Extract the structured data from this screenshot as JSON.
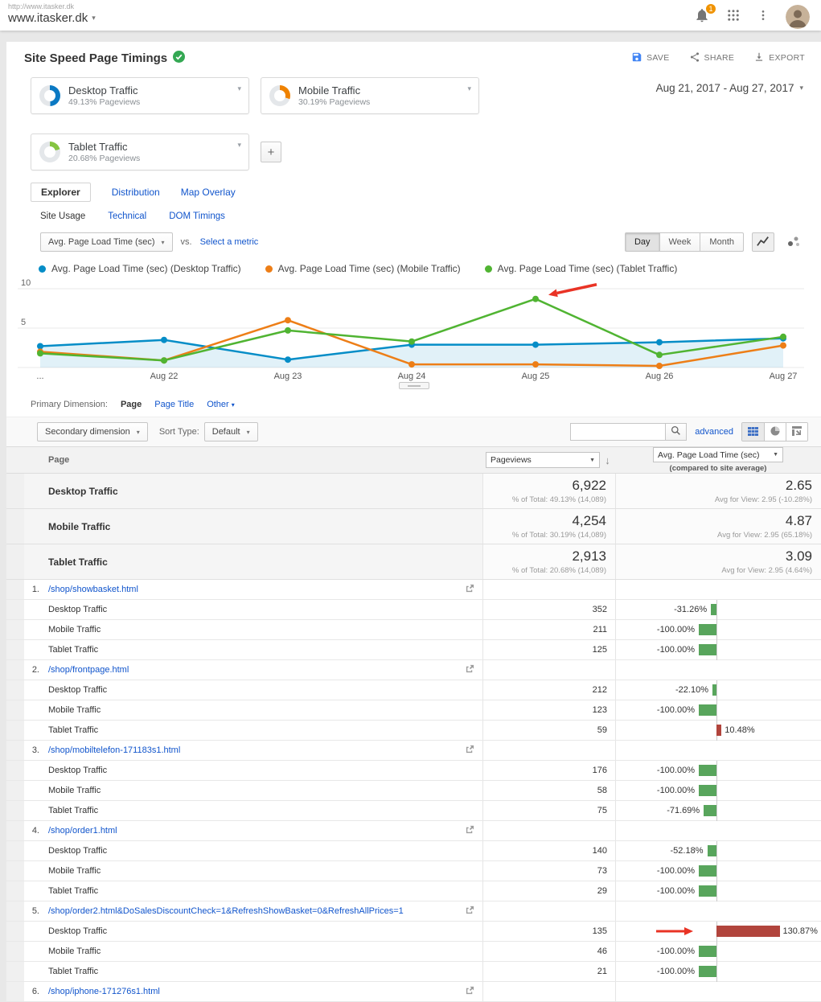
{
  "topbar": {
    "url": "http://www.itasker.dk",
    "account_name": "www.itasker.dk",
    "notification_count": "1"
  },
  "report": {
    "title": "Site Speed Page Timings",
    "actions": {
      "save": "SAVE",
      "share": "SHARE",
      "export": "EXPORT"
    },
    "date_range": "Aug 21, 2017 - Aug 27, 2017"
  },
  "segments": [
    {
      "name": "Desktop Traffic",
      "detail": "49.13% Pageviews",
      "pct": 49.13,
      "color": "#0b79c3"
    },
    {
      "name": "Mobile Traffic",
      "detail": "30.19% Pageviews",
      "pct": 30.19,
      "color": "#ef8200"
    },
    {
      "name": "Tablet Traffic",
      "detail": "20.68% Pageviews",
      "pct": 20.68,
      "color": "#85c441"
    }
  ],
  "tabs": [
    {
      "label": "Explorer",
      "active": true
    },
    {
      "label": "Distribution",
      "active": false
    },
    {
      "label": "Map Overlay",
      "active": false
    }
  ],
  "subtabs": [
    {
      "label": "Site Usage",
      "active": true
    },
    {
      "label": "Technical",
      "active": false
    },
    {
      "label": "DOM Timings",
      "active": false
    }
  ],
  "metric_bar": {
    "metric_dropdown": "Avg. Page Load Time (sec)",
    "vs_label": "vs.",
    "select_metric_label": "Select a metric",
    "granularity": [
      "Day",
      "Week",
      "Month"
    ],
    "active_granularity": "Day"
  },
  "legend": [
    {
      "label": "Avg. Page Load Time (sec) (Desktop Traffic)",
      "color": "#058dc7"
    },
    {
      "label": "Avg. Page Load Time (sec) (Mobile Traffic)",
      "color": "#ed7e17"
    },
    {
      "label": "Avg. Page Load Time (sec) (Tablet Traffic)",
      "color": "#50b432"
    }
  ],
  "chart_data": {
    "type": "line",
    "x": [
      "...",
      "Aug 22",
      "Aug 23",
      "Aug 24",
      "Aug 25",
      "Aug 26",
      "Aug 27"
    ],
    "series": [
      {
        "name": "Avg. Page Load Time (sec) (Desktop Traffic)",
        "color": "#058dc7",
        "area": true,
        "values": [
          2.7,
          3.5,
          1.0,
          2.9,
          2.9,
          3.2,
          3.7
        ]
      },
      {
        "name": "Avg. Page Load Time (sec) (Mobile Traffic)",
        "color": "#ed7e17",
        "area": false,
        "values": [
          2.0,
          0.9,
          6.0,
          0.4,
          0.4,
          0.2,
          2.8
        ]
      },
      {
        "name": "Avg. Page Load Time (sec) (Tablet Traffic)",
        "color": "#50b432",
        "area": false,
        "values": [
          1.8,
          0.9,
          4.7,
          3.3,
          8.7,
          1.6,
          3.9
        ]
      }
    ],
    "ylim": [
      0,
      10
    ],
    "yticks": [
      5,
      10
    ],
    "grid": true,
    "legend_position": "top"
  },
  "dimension_bar": {
    "label": "Primary Dimension:",
    "options": [
      {
        "label": "Page",
        "active": true,
        "dropdown": false
      },
      {
        "label": "Page Title",
        "active": false,
        "dropdown": false
      },
      {
        "label": "Other",
        "active": false,
        "dropdown": true
      }
    ]
  },
  "table_controls": {
    "secondary_dimension": "Secondary dimension",
    "sort_type_label": "Sort Type:",
    "sort_type_value": "Default",
    "search_value": "",
    "advanced_label": "advanced"
  },
  "table": {
    "columns": {
      "page": "Page",
      "pageviews": "Pageviews",
      "metric": "Avg. Page Load Time (sec)",
      "metric_note": "(compared to site average)"
    },
    "bar_colors": {
      "negative": "#58a55c",
      "positive": "#b1443c"
    },
    "summary_rows": [
      {
        "name": "Desktop Traffic",
        "pageviews": "6,922",
        "pageviews_note": "% of Total: 49.13% (14,089)",
        "metric": "2.65",
        "metric_note": "Avg for View: 2.95 (-10.28%)"
      },
      {
        "name": "Mobile Traffic",
        "pageviews": "4,254",
        "pageviews_note": "% of Total: 30.19% (14,089)",
        "metric": "4.87",
        "metric_note": "Avg for View: 2.95 (65.18%)"
      },
      {
        "name": "Tablet Traffic",
        "pageviews": "2,913",
        "pageviews_note": "% of Total: 20.68% (14,089)",
        "metric": "3.09",
        "metric_note": "Avg for View: 2.95 (4.64%)"
      }
    ],
    "rows": [
      {
        "index": "1.",
        "url": "/shop/showbasket.html",
        "segments": [
          {
            "name": "Desktop Traffic",
            "pageviews": "352",
            "delta": -31.26,
            "delta_label": "-31.26%"
          },
          {
            "name": "Mobile Traffic",
            "pageviews": "211",
            "delta": -100.0,
            "delta_label": "-100.00%"
          },
          {
            "name": "Tablet Traffic",
            "pageviews": "125",
            "delta": -100.0,
            "delta_label": "-100.00%"
          }
        ]
      },
      {
        "index": "2.",
        "url": "/shop/frontpage.html",
        "segments": [
          {
            "name": "Desktop Traffic",
            "pageviews": "212",
            "delta": -22.1,
            "delta_label": "-22.10%"
          },
          {
            "name": "Mobile Traffic",
            "pageviews": "123",
            "delta": -100.0,
            "delta_label": "-100.00%"
          },
          {
            "name": "Tablet Traffic",
            "pageviews": "59",
            "delta": 10.48,
            "delta_label": "10.48%"
          }
        ]
      },
      {
        "index": "3.",
        "url": "/shop/mobiltelefon-171183s1.html",
        "segments": [
          {
            "name": "Desktop Traffic",
            "pageviews": "176",
            "delta": -100.0,
            "delta_label": "-100.00%"
          },
          {
            "name": "Mobile Traffic",
            "pageviews": "58",
            "delta": -100.0,
            "delta_label": "-100.00%"
          },
          {
            "name": "Tablet Traffic",
            "pageviews": "75",
            "delta": -71.69,
            "delta_label": "-71.69%"
          }
        ]
      },
      {
        "index": "4.",
        "url": "/shop/order1.html",
        "segments": [
          {
            "name": "Desktop Traffic",
            "pageviews": "140",
            "delta": -52.18,
            "delta_label": "-52.18%"
          },
          {
            "name": "Mobile Traffic",
            "pageviews": "73",
            "delta": -100.0,
            "delta_label": "-100.00%"
          },
          {
            "name": "Tablet Traffic",
            "pageviews": "29",
            "delta": -100.0,
            "delta_label": "-100.00%"
          }
        ]
      },
      {
        "index": "5.",
        "url": "/shop/order2.html&DoSalesDiscountCheck=1&RefreshShowBasket=0&RefreshAllPrices=1",
        "segments": [
          {
            "name": "Desktop Traffic",
            "pageviews": "135",
            "delta": 130.87,
            "delta_label": "130.87%",
            "arrow": true
          },
          {
            "name": "Mobile Traffic",
            "pageviews": "46",
            "delta": -100.0,
            "delta_label": "-100.00%"
          },
          {
            "name": "Tablet Traffic",
            "pageviews": "21",
            "delta": -100.0,
            "delta_label": "-100.00%"
          }
        ]
      },
      {
        "index": "6.",
        "url": "/shop/iphone-171276s1.html",
        "segments": []
      }
    ]
  },
  "annotations": {
    "arrow_color": "#e93325",
    "chart_arrow": true
  },
  "glyphs": {
    "caret_down": "▾",
    "dropdown_arrow": "▼",
    "sort_desc": "↓",
    "add": "+"
  }
}
